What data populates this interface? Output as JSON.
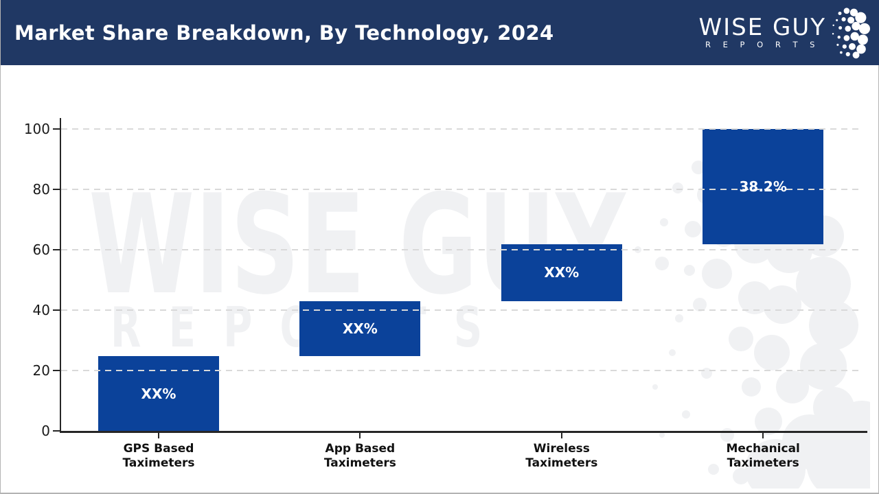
{
  "header": {
    "title": "Market Share Breakdown, By Technology, 2024",
    "logo": {
      "name": "WISE GUY",
      "sub": "R E P O R T S"
    }
  },
  "watermark": {
    "line1": "WISE GUY",
    "line2": "R E P O R T S"
  },
  "colors": {
    "header_bg": "#203864",
    "bar": "#0b429a",
    "grid": "#d9d9d9",
    "axis": "#262626",
    "bar_label_text": "#ffffff",
    "watermark": "#f0f1f3"
  },
  "chart_data": {
    "type": "bar",
    "subtype": "waterfall",
    "title": "Market Share Breakdown, By Technology, 2024",
    "categories": [
      "GPS Based\nTaximeters",
      "App Based\nTaximeters",
      "Wireless\nTaximeters",
      "Mechanical\nTaximeters"
    ],
    "segments": [
      {
        "category": "GPS Based Taximeters",
        "start": 0,
        "end": 24.7,
        "label": "XX%"
      },
      {
        "category": "App Based Taximeters",
        "start": 24.8,
        "end": 42.9,
        "label": "XX%"
      },
      {
        "category": "Wireless Taximeters",
        "start": 42.9,
        "end": 61.9,
        "label": "XX%"
      },
      {
        "category": "Mechanical Taximeters",
        "start": 61.9,
        "end": 100,
        "label": "38.2%",
        "value": 38.2
      }
    ],
    "xlabel": "",
    "ylabel": "",
    "yticks": [
      0,
      20,
      40,
      60,
      80,
      100
    ],
    "ylim": [
      0,
      103.6
    ],
    "grid": "horizontal-dashed",
    "legend": "none",
    "bar_color": "#0b429a",
    "bar_label_color": "#ffffff"
  }
}
